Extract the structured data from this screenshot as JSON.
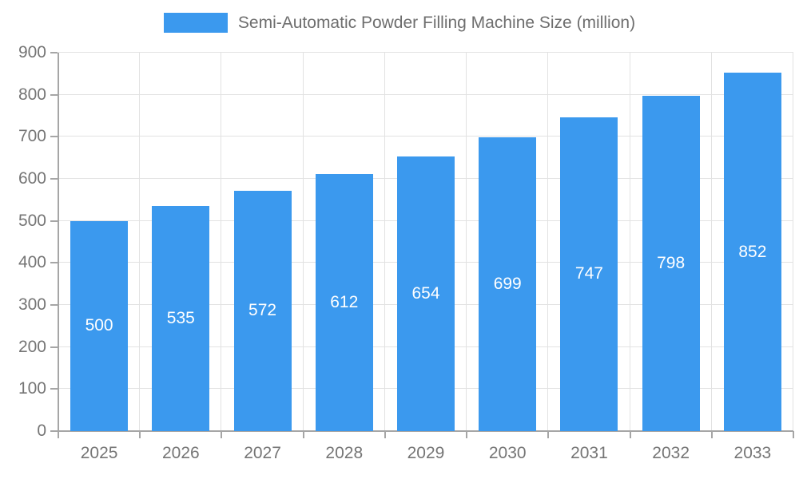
{
  "chart_data": {
    "type": "bar",
    "title": "Semi-Automatic Powder Filling Machine Size (million)",
    "legend_entries": [
      "Semi-Automatic Powder Filling Machine Size (million)"
    ],
    "legend_position": "top-center",
    "categories": [
      "2025",
      "2026",
      "2027",
      "2028",
      "2029",
      "2030",
      "2031",
      "2032",
      "2033"
    ],
    "values": [
      500,
      535,
      572,
      612,
      654,
      699,
      747,
      798,
      852
    ],
    "xlabel": "",
    "ylabel": "",
    "ylim": [
      0,
      900
    ],
    "ytick_interval": 100,
    "ytick_labels": [
      "0",
      "100",
      "200",
      "300",
      "400",
      "500",
      "600",
      "700",
      "800",
      "900"
    ],
    "grid": true,
    "value_labels_position": "inside-center",
    "style": {
      "bar_color": "#3B99EE",
      "bar_value_text_color": "#FFFFFF",
      "axis_text_color": "#757575",
      "legend_text_color": "#6E6E6E",
      "grid_line_color": "#E2E2E2",
      "axis_line_color": "#A6A6A6",
      "background_color": "#FFFFFF"
    }
  }
}
